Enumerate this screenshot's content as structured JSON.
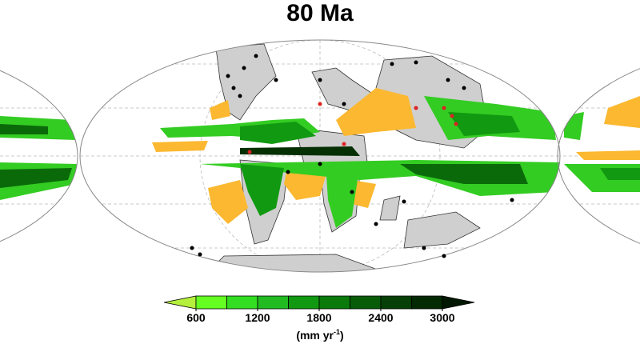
{
  "title": "80 Ma",
  "colorbar": {
    "ticks": [
      600,
      1200,
      1800,
      2400,
      3000
    ],
    "colors": [
      "#b4f03c",
      "#66ff22",
      "#33dd22",
      "#22bb22",
      "#119911",
      "#0a7a0a",
      "#085c08",
      "#064006",
      "#042a04",
      "#021802"
    ],
    "unit": {
      "text": "(mm yr",
      "sup": "-1",
      "close": ")"
    }
  }
}
